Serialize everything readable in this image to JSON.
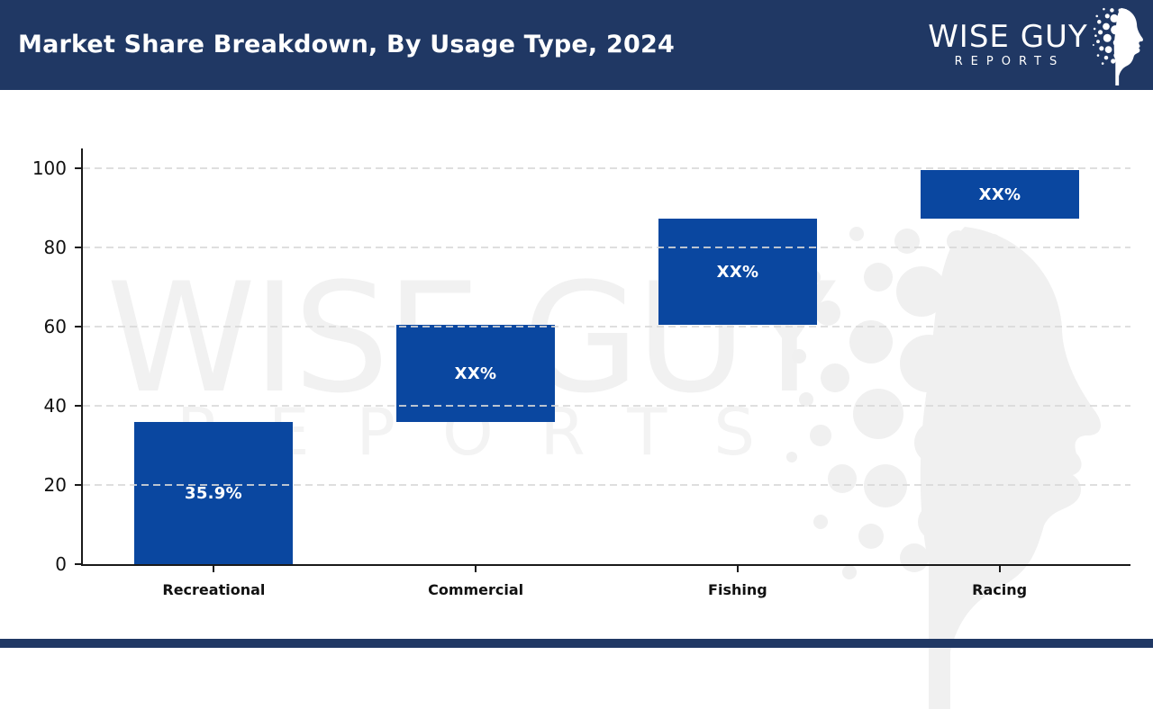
{
  "header": {
    "title": "Market Share Breakdown, By Usage Type, 2024",
    "bg_color": "#203864",
    "logo": {
      "wordmark": "WISE GUY",
      "subtext": "REPORTS"
    }
  },
  "watermark": {
    "wordmark": "WISE GUY",
    "subtext": "REPORTS"
  },
  "chart_data": {
    "type": "bar",
    "subtype": "waterfall",
    "title": "Market Share Breakdown, By Usage Type, 2024",
    "xlabel": "",
    "ylabel": "",
    "ylim": [
      0,
      105
    ],
    "yticks": [
      0,
      20,
      40,
      60,
      80,
      100
    ],
    "grid": "dashed-horizontal",
    "legend": "none",
    "categories": [
      "Recreational",
      "Commercial",
      "Fishing",
      "Racing"
    ],
    "segments": [
      {
        "category": "Recreational",
        "from": 0,
        "to": 35.9,
        "label": "35.9%"
      },
      {
        "category": "Commercial",
        "from": 35.9,
        "to": 60.5,
        "label": "XX%"
      },
      {
        "category": "Fishing",
        "from": 60.5,
        "to": 87.3,
        "label": "XX%"
      },
      {
        "category": "Racing",
        "from": 87.3,
        "to": 99.6,
        "label": "XX%"
      }
    ],
    "colors": {
      "bar": "#0a47a0",
      "bar_label": "#ffffff",
      "grid": "#d9d9d9",
      "axis": "#1a1a1a",
      "tick_label": "#111111"
    }
  },
  "footer": {
    "bg_color": "#203864"
  }
}
